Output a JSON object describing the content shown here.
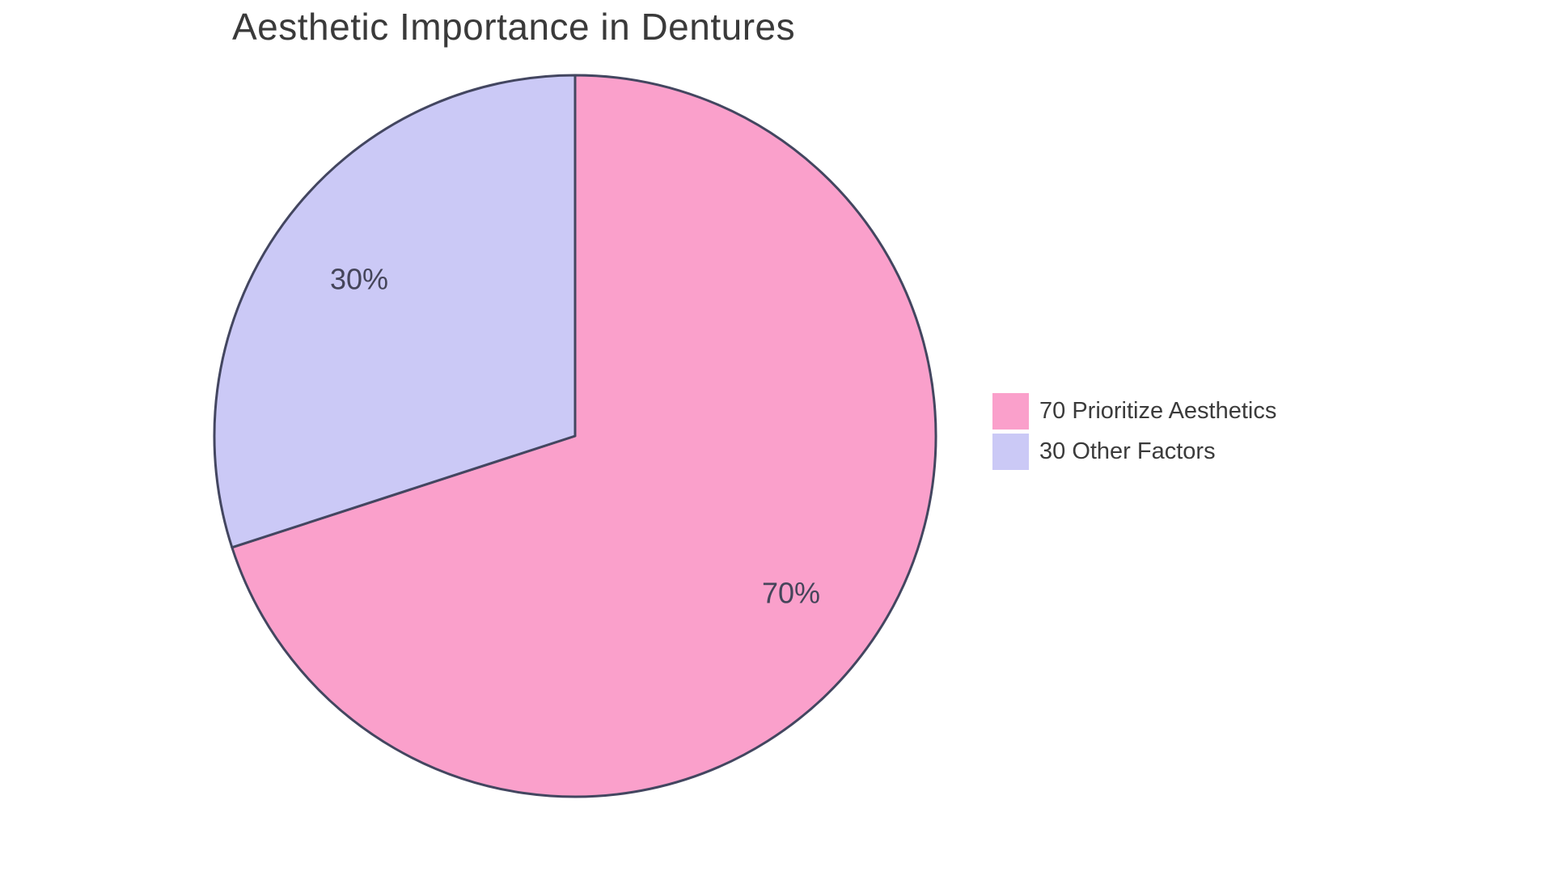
{
  "chart_data": {
    "type": "pie",
    "title": "Aesthetic Importance in Dentures",
    "slices": [
      {
        "label": "70 Prioritize Aesthetics",
        "value": 70,
        "pct_label": "70%",
        "color": "#FAA0CB"
      },
      {
        "label": "30 Other Factors",
        "value": 30,
        "pct_label": "30%",
        "color": "#CBC9F6"
      }
    ],
    "start_angle": "top",
    "direction": "clockwise",
    "edge_color": "#434660",
    "pct_label_color": "#45455A",
    "title_color": "#3A3A3A",
    "legend_text_color": "#3B3B3B",
    "legend_position": "right",
    "background": "#FFFFFF"
  }
}
